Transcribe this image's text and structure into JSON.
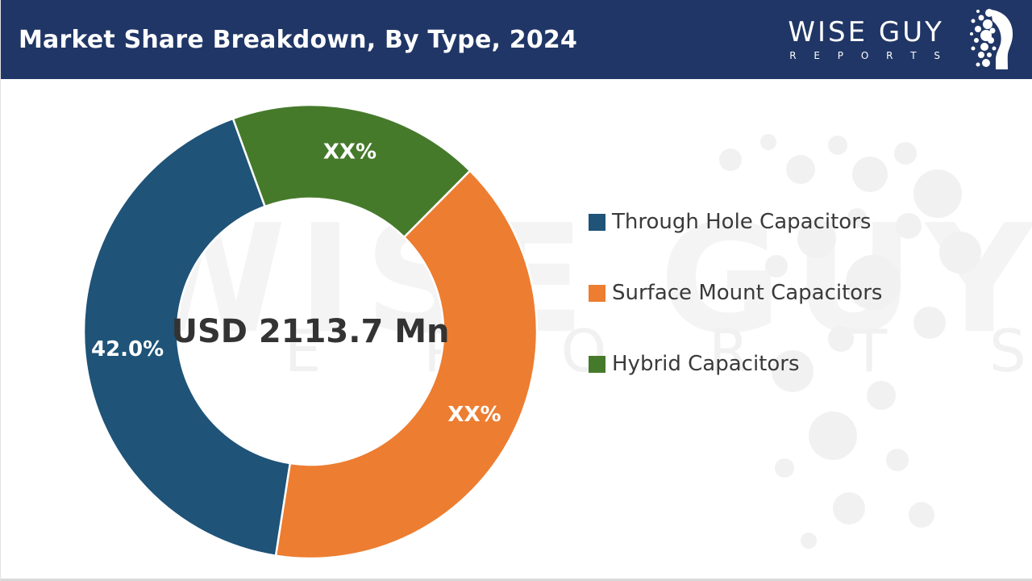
{
  "header": {
    "title": "Market Share Breakdown, By Type, 2024",
    "logo": {
      "line1": "WISE GUY",
      "line2": "R E P O R T S"
    }
  },
  "watermark": {
    "line1": "WISE GUY",
    "line2": "R E P O R T S"
  },
  "colors": {
    "header_navy": "#203666",
    "blue": "#1f5378",
    "orange": "#ed7d31",
    "green": "#467a2b",
    "center_text": "#333333",
    "slice_label_text": "#ffffff"
  },
  "chart_data": {
    "type": "pie",
    "subtype": "donut",
    "title": "Market Share Breakdown, By Type, 2024",
    "center_label": "USD 2113.7 Mn",
    "start_angle_deg": -20,
    "direction": "clockwise",
    "series": [
      {
        "name": "Hybrid Capacitors",
        "pct": 18,
        "label": "XX%",
        "color": "#467a2b"
      },
      {
        "name": "Surface Mount Capacitors",
        "pct": 40,
        "label": "XX%",
        "color": "#ed7d31"
      },
      {
        "name": "Through Hole Capacitors",
        "pct": 42,
        "label": "42.0%",
        "color": "#1f5378"
      }
    ],
    "legend": [
      {
        "label": "Through Hole Capacitors",
        "color": "#1f5378"
      },
      {
        "label": "Surface Mount Capacitors",
        "color": "#ed7d31"
      },
      {
        "label": "Hybrid Capacitors",
        "color": "#467a2b"
      }
    ],
    "legend_position": "right"
  }
}
